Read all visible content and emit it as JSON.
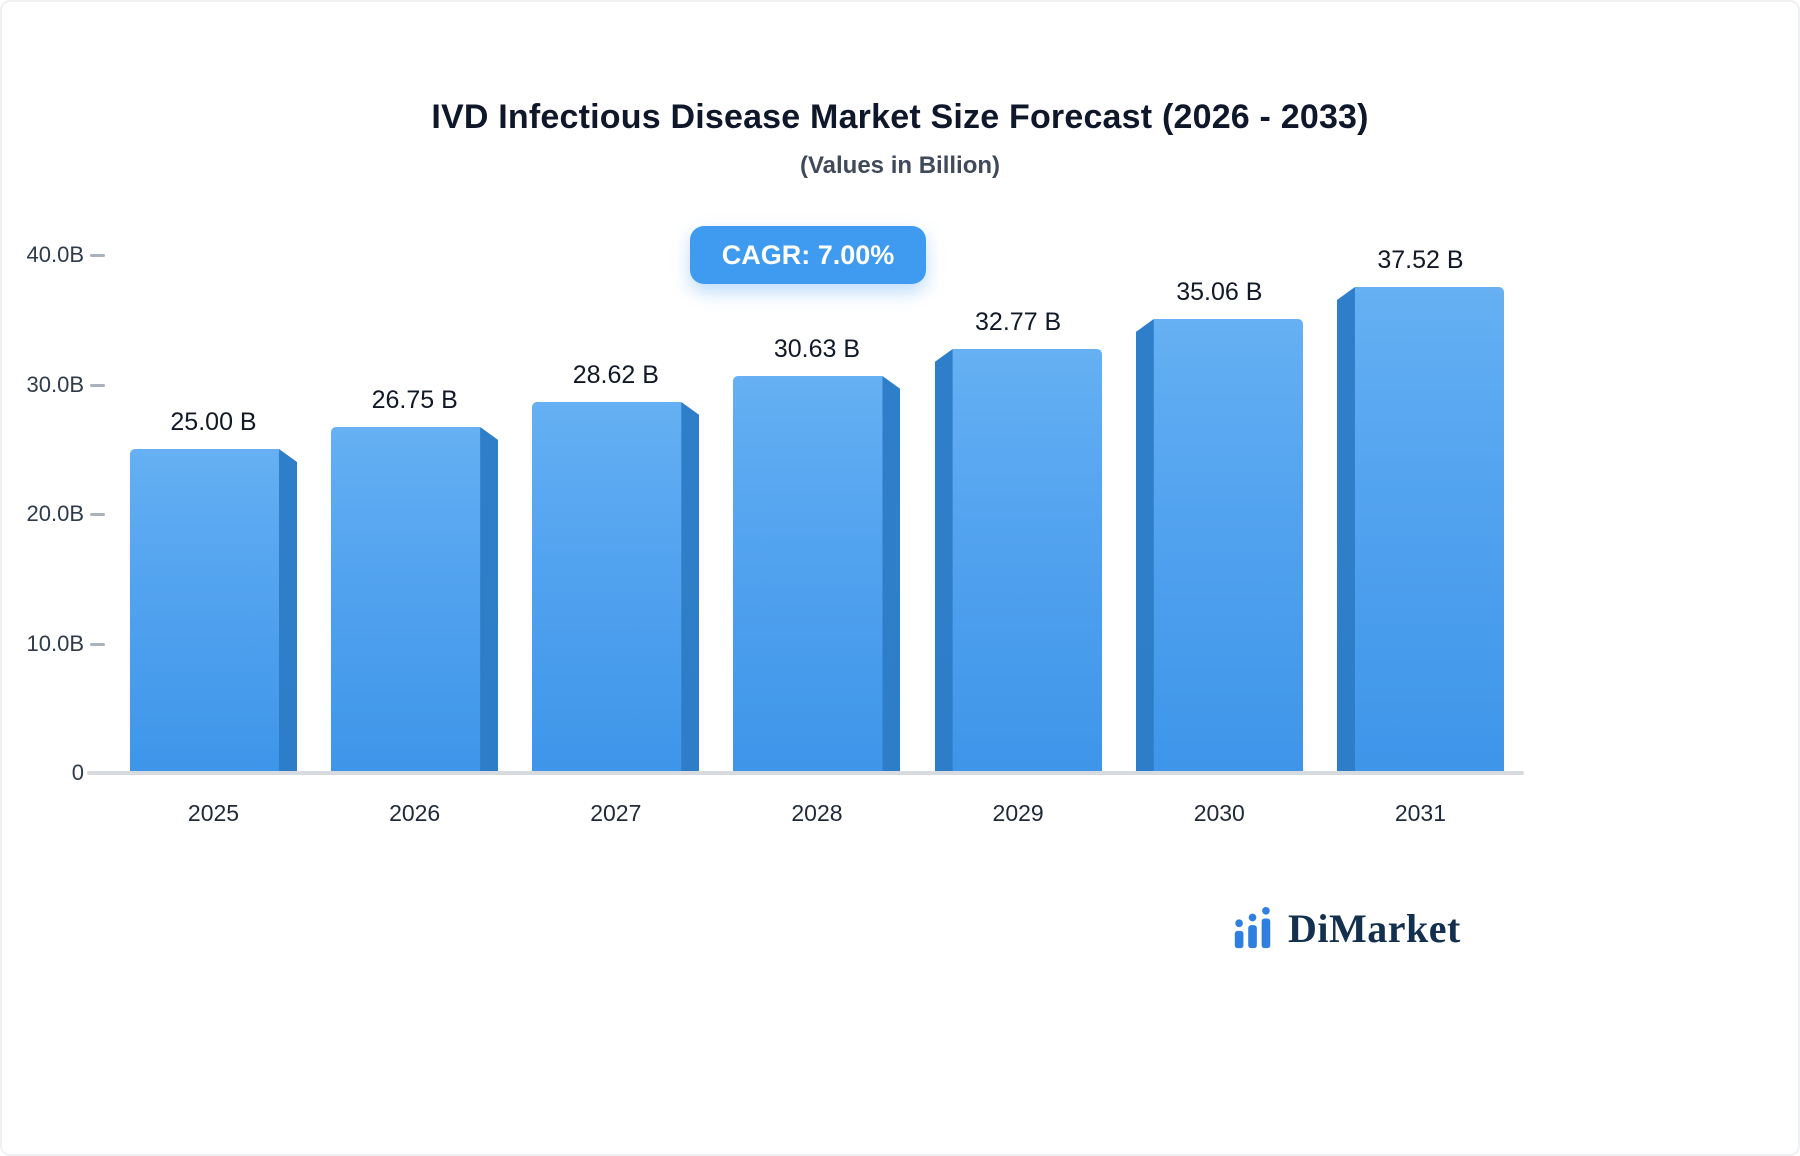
{
  "header": {
    "title": "IVD Infectious Disease Market Size Forecast (2026 - 2033)",
    "subtitle": "(Values in Billion)"
  },
  "badge": {
    "label": "CAGR: 7.00%",
    "color": "#3f9bf0"
  },
  "chart_data": {
    "type": "bar",
    "categories": [
      "2025",
      "2026",
      "2027",
      "2028",
      "2029",
      "2030",
      "2031"
    ],
    "values": [
      25.0,
      26.75,
      28.62,
      30.63,
      32.77,
      35.06,
      37.52
    ],
    "bar_labels": [
      "25.00 B",
      "26.75 B",
      "28.62 B",
      "30.63 B",
      "32.77 B",
      "35.06 B",
      "37.52 B"
    ],
    "title": "IVD Infectious Disease Market Size Forecast (2026 - 2033)",
    "subtitle": "(Values in Billion)",
    "xlabel": "",
    "ylabel": "",
    "ylim": [
      0,
      40
    ],
    "yticks": [
      {
        "value": 0,
        "label": "0"
      },
      {
        "value": 10,
        "label": "10.0B"
      },
      {
        "value": 20,
        "label": "20.0B"
      },
      {
        "value": 30,
        "label": "30.0B"
      },
      {
        "value": 40,
        "label": "40.0B"
      }
    ],
    "grid": false,
    "legend_position": "none",
    "bar_color_top": "#66b0f3",
    "bar_color_bottom": "#3e95e9",
    "bar_side_color": "#2d7dc8"
  },
  "logo": {
    "text": "DiMarket",
    "icon": "mini-bar-chart-icon",
    "icon_color": "#2e7fe0",
    "text_color": "#14304f"
  }
}
